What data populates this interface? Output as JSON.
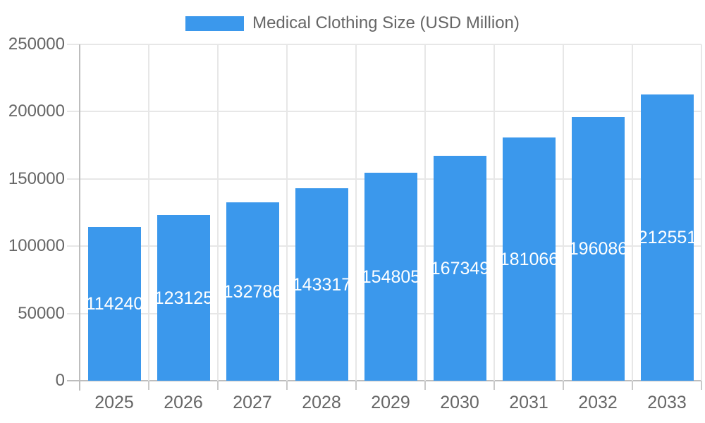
{
  "chart_data": {
    "type": "bar",
    "title": "Medical Clothing Size (USD Million)",
    "categories": [
      "2025",
      "2026",
      "2027",
      "2028",
      "2029",
      "2030",
      "2031",
      "2032",
      "2033"
    ],
    "values": [
      114240,
      123125,
      132786,
      143317,
      154805,
      167349,
      181066,
      196086,
      212551
    ],
    "xlabel": "",
    "ylabel": "",
    "ylim": [
      0,
      250000
    ],
    "ytick_step": 50000,
    "yticks": [
      "250000",
      "200000",
      "150000",
      "100000",
      "50000",
      "0"
    ],
    "grid": true,
    "legend": {
      "position": "top",
      "label": "Medical Clothing Size (USD Million)"
    },
    "colors": {
      "bar": "#3B98EC",
      "bar_label": "#FFFFFF",
      "axis_text": "#666666",
      "grid_line": "#E7E7E7",
      "axis_line": "#BDBDBD",
      "tick_line": "#C9C9C9",
      "background": "#FFFFFF"
    }
  }
}
